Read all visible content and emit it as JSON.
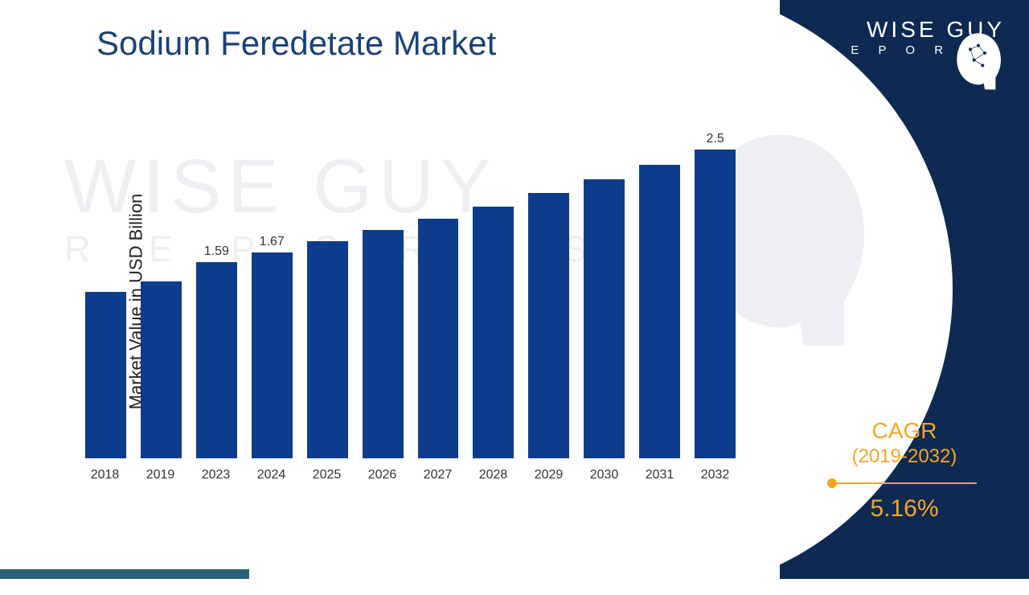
{
  "title": "Sodium Feredetate Market",
  "logo": {
    "line1": "WISE GUY",
    "line2": "R E P O R T S"
  },
  "cagr": {
    "label": "CAGR",
    "range": "(2019-2032)",
    "value": "5.16%",
    "color": "#f5a623"
  },
  "chart": {
    "type": "bar",
    "ylabel": "Market Value in USD Billion",
    "ylim_max": 2.8,
    "bar_color": "#0e3c8c",
    "background_color": "#ffffff",
    "label_fontsize": 16,
    "title_fontsize": 42,
    "bars": [
      {
        "year": "2018",
        "value": 1.35,
        "show_label": false
      },
      {
        "year": "2019",
        "value": 1.43,
        "show_label": false
      },
      {
        "year": "2023",
        "value": 1.59,
        "show_label": true
      },
      {
        "year": "2024",
        "value": 1.67,
        "show_label": true
      },
      {
        "year": "2025",
        "value": 1.76,
        "show_label": false
      },
      {
        "year": "2026",
        "value": 1.85,
        "show_label": false
      },
      {
        "year": "2027",
        "value": 1.94,
        "show_label": false
      },
      {
        "year": "2028",
        "value": 2.04,
        "show_label": false
      },
      {
        "year": "2029",
        "value": 2.15,
        "show_label": false
      },
      {
        "year": "2030",
        "value": 2.26,
        "show_label": false
      },
      {
        "year": "2031",
        "value": 2.38,
        "show_label": false
      },
      {
        "year": "2032",
        "value": 2.5,
        "show_label": true
      }
    ]
  },
  "panel_color": "#0e2a52",
  "watermark": {
    "line1": "WISE GUY",
    "line2": "R E P O R T S"
  }
}
